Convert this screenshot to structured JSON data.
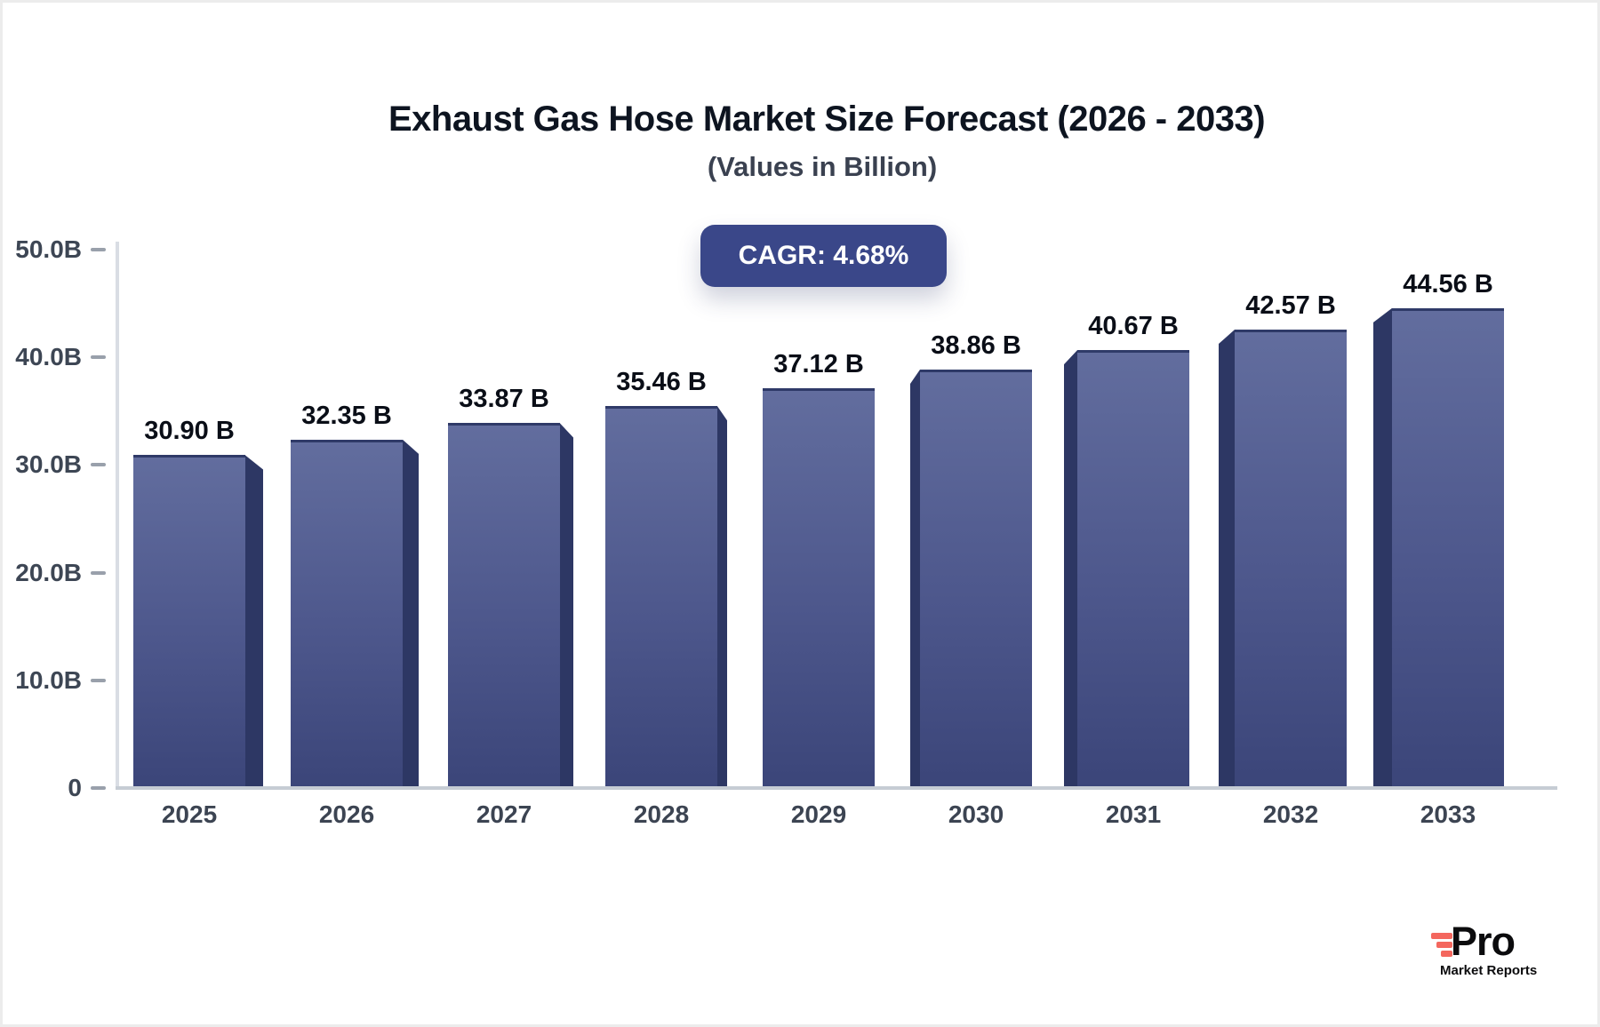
{
  "header": {
    "title": "Exhaust Gas Hose Market Size Forecast (2026 - 2033)",
    "subtitle": "(Values in Billion)"
  },
  "cagr_badge": {
    "label": "CAGR: 4.68%"
  },
  "chart_data": {
    "type": "bar",
    "title": "Exhaust Gas Hose Market Size Forecast (2026 - 2033)",
    "subtitle": "(Values in Billion)",
    "annotation": "CAGR: 4.68%",
    "categories": [
      "2025",
      "2026",
      "2027",
      "2028",
      "2029",
      "2030",
      "2031",
      "2032",
      "2033"
    ],
    "values": [
      30.9,
      32.35,
      33.87,
      35.46,
      37.12,
      38.86,
      40.67,
      42.57,
      44.56
    ],
    "bar_labels": [
      "30.90 B",
      "32.35 B",
      "33.87 B",
      "35.46 B",
      "37.12 B",
      "38.86 B",
      "40.67 B",
      "42.57 B",
      "44.56 B"
    ],
    "unit": "Billion",
    "xlabel": "",
    "ylabel": "",
    "ylim": [
      0,
      50
    ],
    "ytick_values": [
      50,
      40,
      30,
      20,
      10,
      0
    ],
    "ytick_labels": [
      "50.0B",
      "40.0B",
      "30.0B",
      "20.0B",
      "10.0B",
      "0"
    ],
    "grid": false,
    "legend": false,
    "bar_style": "3d-extruded"
  },
  "colors": {
    "bar_front_top": "#626d9e",
    "bar_front_bottom": "#3b4579",
    "bar_side": "#2d3764",
    "bar_top_edge": "#2f3a68",
    "badge_bg": "#3a4789",
    "badge_text": "#ffffff",
    "axis_line": "#d9dde4",
    "baseline": "#c6ccd4",
    "tick_text": "#3d4654",
    "title_text": "#0d1420",
    "logo_accent": "#f4675e"
  },
  "logo": {
    "name": "Pro",
    "tagline": "Market Reports"
  }
}
